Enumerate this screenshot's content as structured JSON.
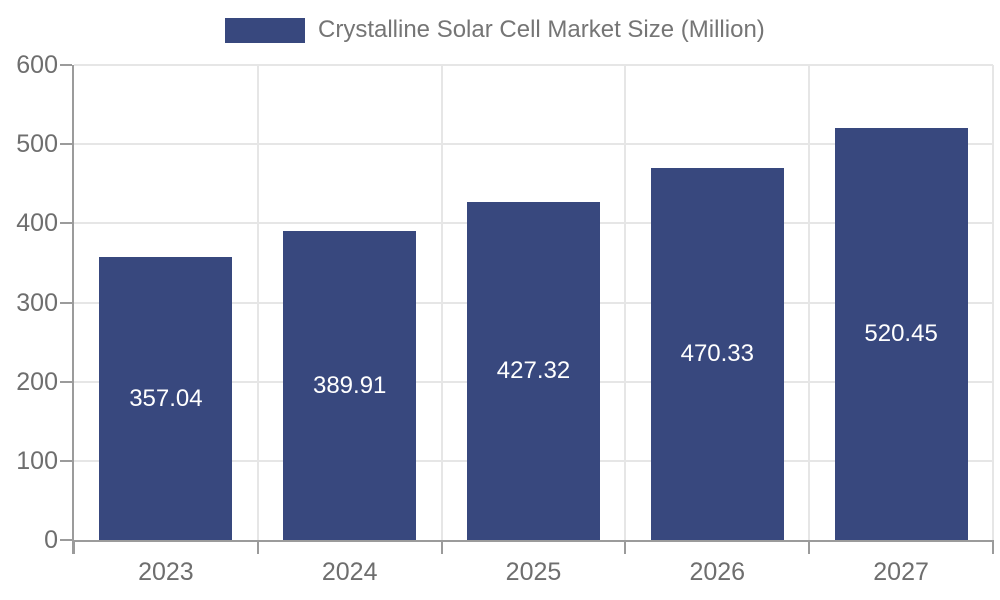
{
  "chart_data": {
    "type": "bar",
    "title": "Crystalline Solar Cell Market Size (Million)",
    "legend": {
      "label": "Crystalline Solar Cell Market Size (Million)",
      "position": "top"
    },
    "categories": [
      "2023",
      "2024",
      "2025",
      "2026",
      "2027"
    ],
    "series": [
      {
        "name": "Crystalline Solar Cell Market Size (Million)",
        "values": [
          357.04,
          389.91,
          427.32,
          470.33,
          520.45
        ]
      }
    ],
    "value_labels": [
      "357.04",
      "389.91",
      "427.32",
      "470.33",
      "520.45"
    ],
    "xlabel": "",
    "ylabel": "",
    "ylim": [
      0,
      600
    ],
    "yticks": [
      0,
      100,
      200,
      300,
      400,
      500,
      600
    ],
    "grid": true,
    "value_label_position": "center-of-bar",
    "colors": {
      "bar": "#38487E",
      "value_label": "#FFFFFF",
      "axis_text": "#6E6E6E",
      "legend_text": "#757575",
      "gridline": "#E6E6E6",
      "axis_line": "#9B9B9B",
      "background": "#FFFFFF"
    }
  }
}
